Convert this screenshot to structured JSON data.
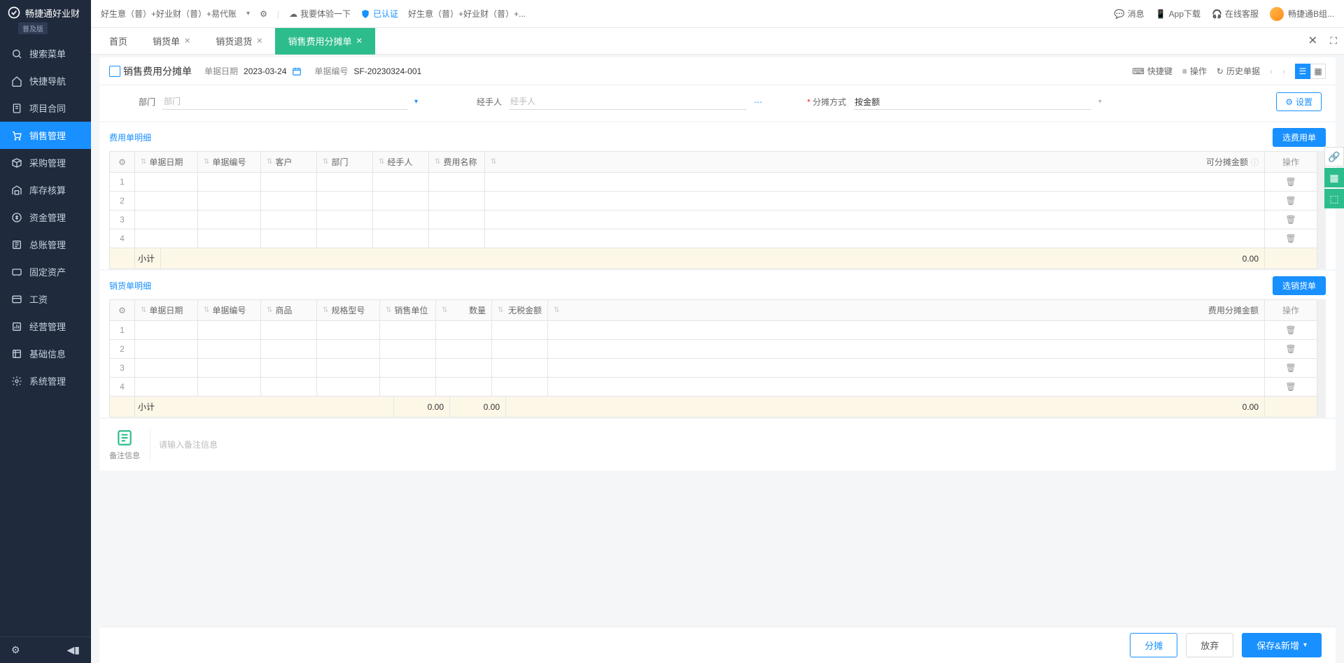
{
  "branding": {
    "name": "畅捷通好业财",
    "edition": "普及版"
  },
  "sidebar": {
    "items": [
      {
        "label": "搜索菜单",
        "icon": "search"
      },
      {
        "label": "快捷导航",
        "icon": "home"
      },
      {
        "label": "项目合同",
        "icon": "doc"
      },
      {
        "label": "销售管理",
        "icon": "cart",
        "active": true
      },
      {
        "label": "采购管理",
        "icon": "box"
      },
      {
        "label": "库存核算",
        "icon": "warehouse"
      },
      {
        "label": "资金管理",
        "icon": "money"
      },
      {
        "label": "总账管理",
        "icon": "ledger"
      },
      {
        "label": "固定资产",
        "icon": "asset"
      },
      {
        "label": "工资",
        "icon": "salary"
      },
      {
        "label": "经营管理",
        "icon": "biz"
      },
      {
        "label": "基础信息",
        "icon": "info"
      },
      {
        "label": "系统管理",
        "icon": "gear"
      }
    ]
  },
  "topbar": {
    "breadcrumb": "好生意（普）+好业财（普）+易代账",
    "experience": "我要体验一下",
    "verified": "已认证",
    "context": "好生意（普）+好业财（普）+...",
    "links": {
      "msg": "消息",
      "app": "App下载",
      "support": "在线客服"
    },
    "user": "畅捷通B组..."
  },
  "tabs": [
    {
      "label": "首页",
      "closable": false
    },
    {
      "label": "销货单",
      "closable": true
    },
    {
      "label": "销货退货",
      "closable": true
    },
    {
      "label": "销售费用分摊单",
      "closable": true,
      "active": true
    }
  ],
  "doc": {
    "title": "销售费用分摊单",
    "date_label": "单据日期",
    "date_value": "2023-03-24",
    "no_label": "单据编号",
    "no_value": "SF-20230324-001",
    "toolbar": {
      "shortcut": "快捷键",
      "operate": "操作",
      "history": "历史单据"
    }
  },
  "form": {
    "dept": {
      "label": "部门",
      "placeholder": "部门"
    },
    "handler": {
      "label": "经手人",
      "placeholder": "经手人"
    },
    "method": {
      "label": "分摊方式",
      "value": "按金额"
    },
    "settings": "设置"
  },
  "expense": {
    "title": "费用单明细",
    "select_btn": "选费用单",
    "cols": {
      "date": "单据日期",
      "no": "单据编号",
      "cust": "客户",
      "dept": "部门",
      "handler": "经手人",
      "fname": "费用名称",
      "amount": "可分摊金额",
      "op": "操作"
    },
    "rows": [
      1,
      2,
      3,
      4
    ],
    "subtotal_label": "小计",
    "subtotal_value": "0.00"
  },
  "sales": {
    "title": "销货单明细",
    "select_btn": "选销货单",
    "cols": {
      "date": "单据日期",
      "no": "单据编号",
      "prod": "商品",
      "spec": "规格型号",
      "unit": "销售单位",
      "qty": "数量",
      "amt": "无税金额",
      "share": "费用分摊金额",
      "op": "操作"
    },
    "rows": [
      1,
      2,
      3,
      4
    ],
    "subtotal_label": "小计",
    "qty_total": "0.00",
    "amt_total": "0.00",
    "share_total": "0.00"
  },
  "remark": {
    "label": "备注信息",
    "placeholder": "请输入备注信息"
  },
  "footer": {
    "allocate": "分摊",
    "discard": "放弃",
    "save": "保存&新增"
  }
}
